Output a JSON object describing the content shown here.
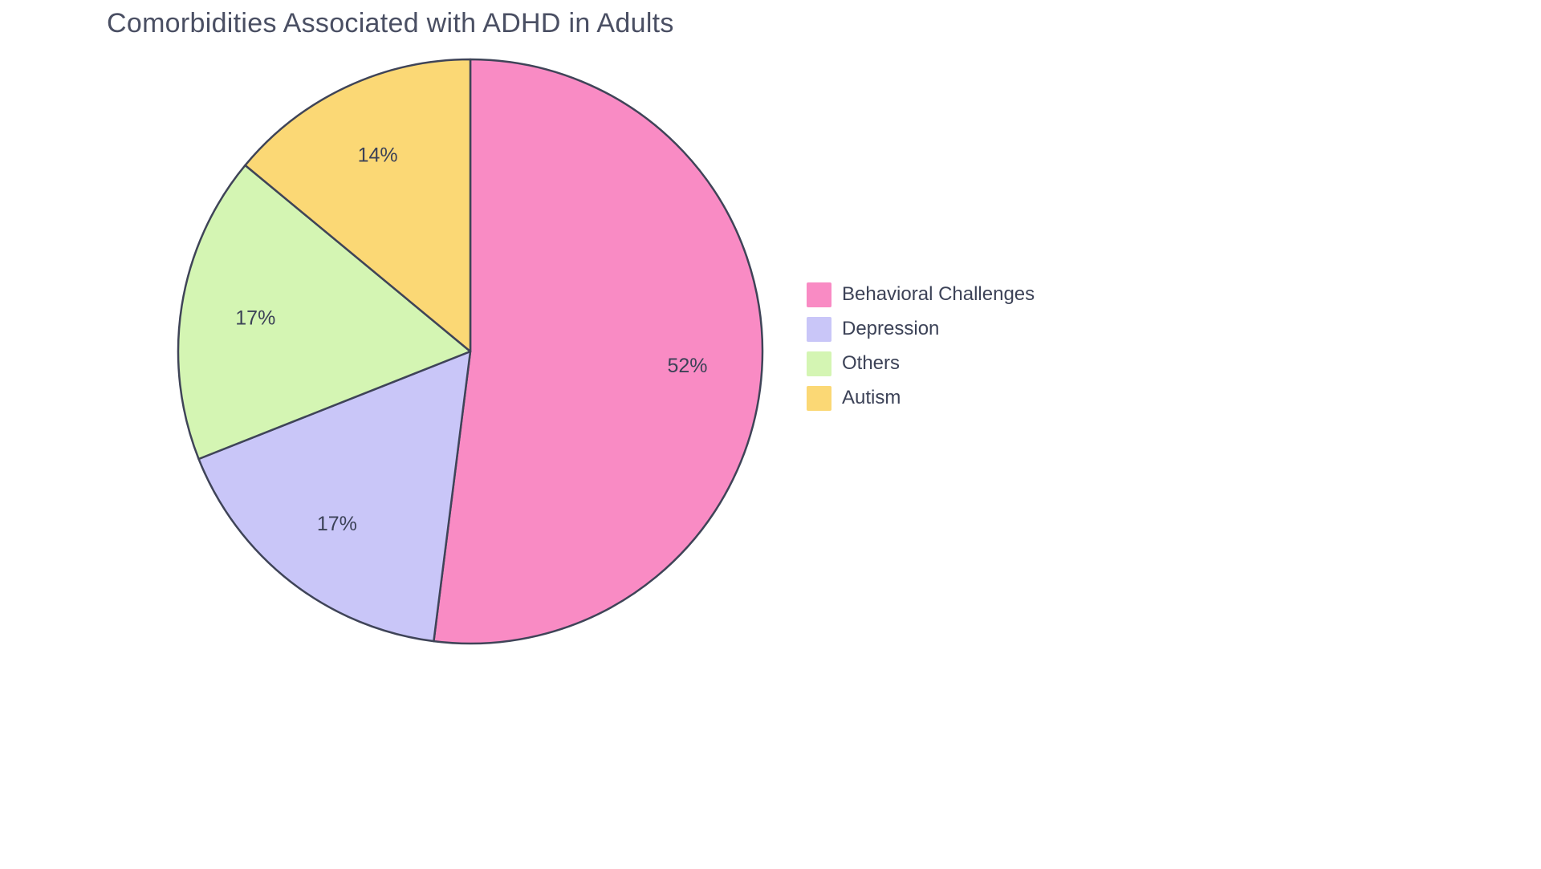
{
  "title": "Comorbidities Associated with ADHD in Adults",
  "chart_data": {
    "type": "pie",
    "title": "Comorbidities Associated with ADHD in Adults",
    "categories": [
      "Behavioral Challenges",
      "Depression",
      "Others",
      "Autism"
    ],
    "values": [
      52,
      17,
      17,
      14
    ],
    "labels": [
      "52%",
      "17%",
      "17%",
      "14%"
    ],
    "colors": [
      "#F98BC4",
      "#C9C6F8",
      "#D4F5B3",
      "#FBD875"
    ],
    "stroke_color": "#3F4458",
    "label_color": "#3C4257",
    "start_angle_deg": 0,
    "direction": "clockwise",
    "legend_position": "right",
    "center": [
      586,
      438
    ],
    "radius": 364,
    "label_radius": 271
  }
}
